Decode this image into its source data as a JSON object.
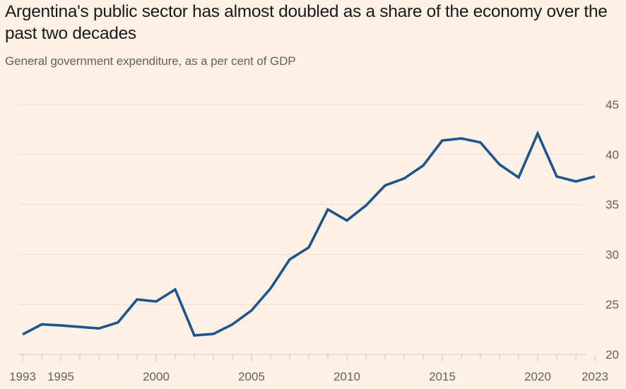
{
  "header": {
    "title": "Argentina's public sector has almost doubled as a share of the economy over the past two decades",
    "subtitle": "General government expenditure, as a per cent of GDP"
  },
  "colors": {
    "background": "#fff1e5",
    "series": "#1e558c",
    "gridline": "#e9ddd2",
    "label": "#66605c"
  },
  "chart_data": {
    "type": "line",
    "title": "Argentina's public sector has almost doubled as a share of the economy over the past two decades",
    "subtitle": "General government expenditure, as a per cent of GDP",
    "xlabel": "",
    "ylabel": "",
    "x": [
      1993,
      1994,
      1995,
      1996,
      1997,
      1998,
      1999,
      2000,
      2001,
      2002,
      2003,
      2004,
      2005,
      2006,
      2007,
      2008,
      2009,
      2010,
      2011,
      2012,
      2013,
      2014,
      2015,
      2016,
      2017,
      2018,
      2019,
      2020,
      2021,
      2022,
      2023
    ],
    "series": [
      {
        "name": "General government expenditure (% of GDP)",
        "values": [
          22.0,
          23.0,
          22.9,
          22.75,
          22.6,
          23.2,
          25.5,
          25.3,
          26.5,
          21.9,
          22.05,
          23.0,
          24.4,
          26.6,
          29.5,
          30.7,
          34.5,
          33.4,
          34.9,
          36.9,
          37.6,
          38.9,
          41.4,
          41.6,
          41.2,
          39.0,
          37.7,
          42.1,
          37.8,
          37.3,
          37.8
        ]
      }
    ],
    "xlim": [
      1993,
      2023
    ],
    "ylim": [
      20,
      45
    ],
    "yticks": [
      20,
      25,
      30,
      35,
      40,
      45
    ],
    "ytick_labels": [
      "20",
      "25",
      "30",
      "35",
      "40",
      "45"
    ],
    "xticks_labeled": [
      1993,
      1995,
      2000,
      2005,
      2010,
      2015,
      2020,
      2023
    ],
    "xtick_labels": [
      "1993",
      "1995",
      "2000",
      "2005",
      "2010",
      "2015",
      "2020",
      "2023"
    ],
    "grid": true,
    "y_axis_side": "right",
    "legend": "none"
  }
}
